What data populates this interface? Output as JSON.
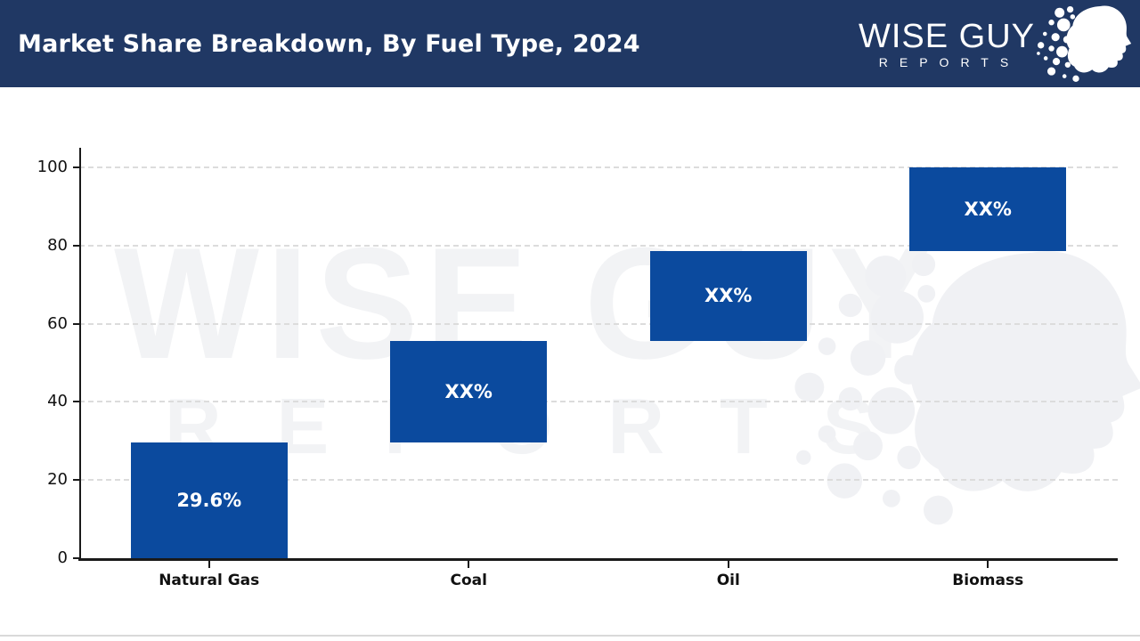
{
  "header": {
    "title": "Market Share Breakdown, By Fuel Type, 2024",
    "logo": {
      "line1": "WISE GUY",
      "line2": "REPORTS"
    }
  },
  "watermark": {
    "line1": "WISE GUY",
    "line2": "REPORTS"
  },
  "colors": {
    "header_bg": "#203864",
    "bar_fill": "#0b4a9e",
    "grid": "#dcdcdc",
    "axis": "#1a1a1a",
    "watermark": "#f2f3f5",
    "bar_label_text": "#ffffff"
  },
  "chart_data": {
    "type": "bar",
    "subtype": "waterfall",
    "title": "Market Share Breakdown, By Fuel Type, 2024",
    "categories": [
      "Natural Gas",
      "Coal",
      "Oil",
      "Biomass"
    ],
    "bars": [
      {
        "category": "Natural Gas",
        "start": 0,
        "end": 29.6,
        "label": "29.6%"
      },
      {
        "category": "Coal",
        "start": 29.6,
        "end": 55.6,
        "label": "XX%"
      },
      {
        "category": "Oil",
        "start": 55.6,
        "end": 78.7,
        "label": "XX%"
      },
      {
        "category": "Biomass",
        "start": 78.7,
        "end": 100,
        "label": "XX%"
      }
    ],
    "xlabel": "",
    "ylabel": "",
    "ylim": [
      0,
      105
    ],
    "yticks": [
      0,
      20,
      40,
      60,
      80,
      100
    ],
    "grid": "horizontal-dashed",
    "legend": "none"
  }
}
